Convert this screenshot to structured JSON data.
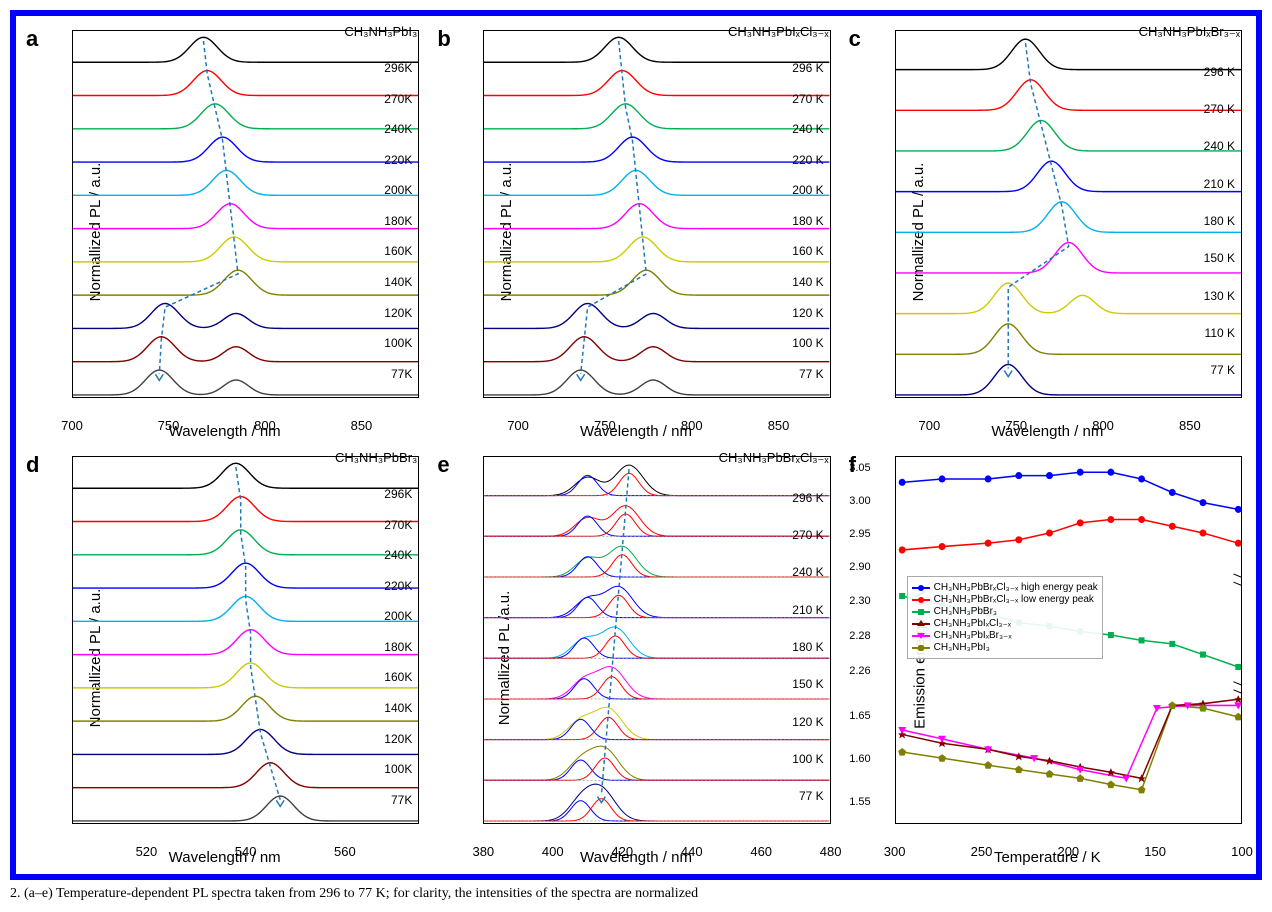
{
  "figure": {
    "border_color": "#0000ff",
    "caption": "2. (a–e) Temperature-dependent PL spectra taken from 296 to 77 K; for clarity, the intensities of the spectra are normalized"
  },
  "colors": {
    "series": [
      "#000000",
      "#ff0000",
      "#00b050",
      "#0000ff",
      "#00b0f0",
      "#ff00ff",
      "#cccc00",
      "#808000",
      "#000080",
      "#800000",
      "#404040"
    ],
    "arrow": "#1f77b4"
  },
  "panels": {
    "a": {
      "label": "a",
      "title": "CH₃NH₃PbI₃",
      "ylabel": "Normallized PL / a.u.",
      "xlabel": "Wavelength / nm",
      "xlim": [
        700,
        880
      ],
      "xticks": [
        700,
        750,
        800,
        850
      ],
      "temps": [
        "296K",
        "270K",
        "240K",
        "220K",
        "200K",
        "180K",
        "160K",
        "140K",
        "120K",
        "100K",
        "77K"
      ],
      "peaks": [
        768,
        770,
        774,
        778,
        780,
        782,
        784,
        786,
        748,
        746,
        745
      ],
      "secondary_peaks": [
        null,
        null,
        null,
        null,
        null,
        null,
        null,
        null,
        785,
        785,
        785
      ]
    },
    "b": {
      "label": "b",
      "title": "CH₃NH₃PbIₓCl₃₋ₓ",
      "ylabel": "Normallized PL / a.u.",
      "xlabel": "Wavelength / nm",
      "xlim": [
        680,
        880
      ],
      "xticks": [
        700,
        750,
        800,
        850
      ],
      "temps": [
        "296 K",
        "270 K",
        "240 K",
        "220 K",
        "200 K",
        "180 K",
        "160 K",
        "140 K",
        "120 K",
        "100 K",
        "77 K"
      ],
      "peaks": [
        758,
        760,
        762,
        766,
        768,
        770,
        772,
        774,
        740,
        738,
        736
      ],
      "secondary_peaks": [
        null,
        null,
        null,
        null,
        null,
        null,
        null,
        null,
        778,
        778,
        778
      ]
    },
    "c": {
      "label": "c",
      "title": "CH₃NH₃PbIₓBr₃₋ₓ",
      "ylabel": "Normallized PL / a.u.",
      "xlabel": "Wavelength / nm",
      "xlim": [
        680,
        880
      ],
      "xticks": [
        700,
        750,
        800,
        850
      ],
      "temps": [
        "296 K",
        "270 K",
        "240 K",
        "210 K",
        "180 K",
        "150 K",
        "130 K",
        "110 K",
        "77 K"
      ],
      "peaks": [
        755,
        758,
        764,
        770,
        776,
        780,
        745,
        745,
        745
      ],
      "secondary_peaks": [
        null,
        null,
        null,
        null,
        null,
        null,
        788,
        null,
        null
      ]
    },
    "d": {
      "label": "d",
      "title": "CH₃NH₃PbBr₃",
      "ylabel": "Normallized PL / a.u.",
      "xlabel": "Wavelength / nm",
      "xlim": [
        505,
        575
      ],
      "xticks": [
        520,
        540,
        560
      ],
      "temps": [
        "296K",
        "270K",
        "240K",
        "220K",
        "200K",
        "180K",
        "160K",
        "140K",
        "120K",
        "100K",
        "77K"
      ],
      "peaks": [
        538,
        539,
        539,
        540,
        540,
        541,
        541,
        542,
        543,
        545,
        547
      ],
      "secondary_peaks": [
        null,
        null,
        null,
        null,
        null,
        null,
        null,
        null,
        null,
        null,
        null
      ]
    },
    "e": {
      "label": "e",
      "title": "CH₃NH₃PbBrₓCl₃₋ₓ",
      "ylabel": "Normallized PL /a.u.",
      "xlabel": "Wavelength / nm",
      "xlim": [
        380,
        480
      ],
      "xticks": [
        380,
        400,
        420,
        440,
        460,
        480
      ],
      "temps": [
        "296 K",
        "270 K",
        "240 K",
        "210 K",
        "180 K",
        "150 K",
        "120 K",
        "100 K",
        "77 K"
      ],
      "peaks": [
        422,
        421,
        420,
        419,
        418,
        417,
        416,
        415,
        414
      ],
      "secondary_peaks": [
        410,
        410,
        410,
        410,
        409,
        409,
        408,
        408,
        408
      ],
      "dual_fit": true
    },
    "f": {
      "label": "f",
      "ylabel": "Emission energy / eV",
      "xlabel": "Temperature / K",
      "xlim_reversed": true,
      "xticks": [
        300,
        250,
        200,
        150,
        100
      ],
      "yticks_upper": [
        3.05,
        3.0,
        2.95,
        2.9
      ],
      "yticks_mid": [
        2.3,
        2.28,
        2.26
      ],
      "yticks_lower": [
        1.65,
        1.6,
        1.55
      ],
      "series": [
        {
          "name": "CH₃NH₃PbBrₓCl₃₋ₓ high energy peak",
          "color": "#0000ff",
          "marker": "circle",
          "x": [
            296,
            270,
            240,
            220,
            200,
            180,
            160,
            140,
            120,
            100,
            77
          ],
          "y": [
            3.03,
            3.035,
            3.035,
            3.04,
            3.04,
            3.045,
            3.045,
            3.035,
            3.015,
            3.0,
            2.99
          ]
        },
        {
          "name": "CH₃NH₃PbBrₓCl₃₋ₓ low energy peak",
          "color": "#ff0000",
          "marker": "circle",
          "x": [
            296,
            270,
            240,
            220,
            200,
            180,
            160,
            140,
            120,
            100,
            77
          ],
          "y": [
            2.93,
            2.935,
            2.94,
            2.945,
            2.955,
            2.97,
            2.975,
            2.975,
            2.965,
            2.955,
            2.94
          ]
        },
        {
          "name": "CH₃NH₃PbBr₃",
          "color": "#00b050",
          "marker": "square",
          "x": [
            296,
            270,
            240,
            220,
            200,
            180,
            160,
            140,
            120,
            100,
            77
          ],
          "y": [
            2.305,
            2.3,
            2.295,
            2.29,
            2.288,
            2.285,
            2.283,
            2.28,
            2.278,
            2.272,
            2.265
          ]
        },
        {
          "name": "CH₃NH₃PbIₓCl₃₋ₓ",
          "color": "#800000",
          "marker": "star",
          "x": [
            296,
            270,
            240,
            220,
            200,
            180,
            160,
            140,
            120,
            100,
            77
          ],
          "y": [
            1.635,
            1.625,
            1.618,
            1.61,
            1.605,
            1.598,
            1.592,
            1.585,
            1.668,
            1.67,
            1.675
          ]
        },
        {
          "name": "CH₃NH₃PbIₓBr₃₋ₓ",
          "color": "#ff00ff",
          "marker": "triangle",
          "x": [
            296,
            270,
            240,
            210,
            180,
            150,
            130,
            110,
            77
          ],
          "y": [
            1.64,
            1.63,
            1.618,
            1.608,
            1.595,
            1.585,
            1.665,
            1.668,
            1.668
          ]
        },
        {
          "name": "CH₃NH₃PbI₃",
          "color": "#808000",
          "marker": "pentagon",
          "x": [
            296,
            270,
            240,
            220,
            200,
            180,
            160,
            140,
            120,
            100,
            77
          ],
          "y": [
            1.615,
            1.608,
            1.6,
            1.595,
            1.59,
            1.585,
            1.578,
            1.572,
            1.668,
            1.665,
            1.655
          ]
        }
      ]
    }
  }
}
